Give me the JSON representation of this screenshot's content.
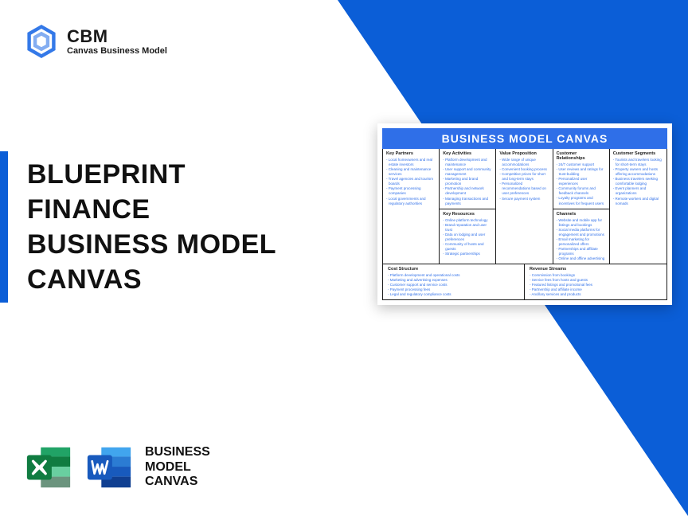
{
  "brand": {
    "acronym": "CBM",
    "subtitle": "Canvas Business Model",
    "logo_color": "#1e6ae5"
  },
  "title": {
    "line1": "BLUEPRINT",
    "line2": "FINANCE",
    "line3": "BUSINESS MODEL",
    "line4": "CANVAS",
    "bar_color": "#0b5ed7"
  },
  "bottom": {
    "line1": "BUSINESS",
    "line2": "MODEL",
    "line3": "CANVAS",
    "excel_color": "#107c41",
    "word_color": "#185abd"
  },
  "canvas": {
    "header": "BUSINESS MODEL CANVAS",
    "header_bg": "#2f6fe8",
    "item_color": "#2f6fe8",
    "sections": {
      "key_partners": {
        "title": "Key Partners",
        "items": [
          "Local homeowners and real estate investors",
          "Cleaning and maintenance services",
          "Travel agencies and tourism boards",
          "Payment processing companies",
          "Local governments and regulatory authorities"
        ]
      },
      "key_activities": {
        "title": "Key Activities",
        "items": [
          "Platform development and maintenance",
          "User support and community management",
          "Marketing and brand promotion",
          "Partnership and network development",
          "Managing transactions and payments"
        ]
      },
      "key_resources": {
        "title": "Key Resources",
        "items": [
          "Online platform technology",
          "Brand reputation and user trust",
          "Data on lodging and user preferences",
          "Community of hosts and guests",
          "Strategic partnerships"
        ]
      },
      "value_proposition": {
        "title": "Value Proposition",
        "items": [
          "Wide range of unique accommodations",
          "Convenient booking process",
          "Competitive prices for short and long-term stays",
          "Personalized recommendations based on user preferences",
          "Secure payment system"
        ]
      },
      "customer_relationships": {
        "title": "Customer Relationships",
        "items": [
          "24/7 customer support",
          "User reviews and ratings for trust-building",
          "Personalized user experiences",
          "Community forums and feedback channels",
          "Loyalty programs and incentives for frequent users"
        ]
      },
      "channels": {
        "title": "Channels",
        "items": [
          "Website and mobile app for listings and bookings",
          "Social media platforms for engagement and promotions",
          "Email marketing for personalized offers",
          "Partnerships and affiliate programs",
          "Online and offline advertising"
        ]
      },
      "customer_segments": {
        "title": "Customer Segments",
        "items": [
          "Tourists and travelers looking for short-term stays",
          "Property owners and hosts offering accommodations",
          "Business travelers seeking comfortable lodging",
          "Event planners and organizations",
          "Remote workers and digital nomads"
        ]
      },
      "cost_structure": {
        "title": "Cost Structure",
        "items": [
          "Platform development and operational costs",
          "Marketing and advertising expenses",
          "Customer support and service costs",
          "Payment processing fees",
          "Legal and regulatory compliance costs"
        ]
      },
      "revenue_streams": {
        "title": "Revenue Streams",
        "items": [
          "Commission from bookings",
          "Service fees from hosts and guests",
          "Featured listings and promotional fees",
          "Partnership and affiliate income",
          "Ancillary services and products"
        ]
      }
    }
  }
}
